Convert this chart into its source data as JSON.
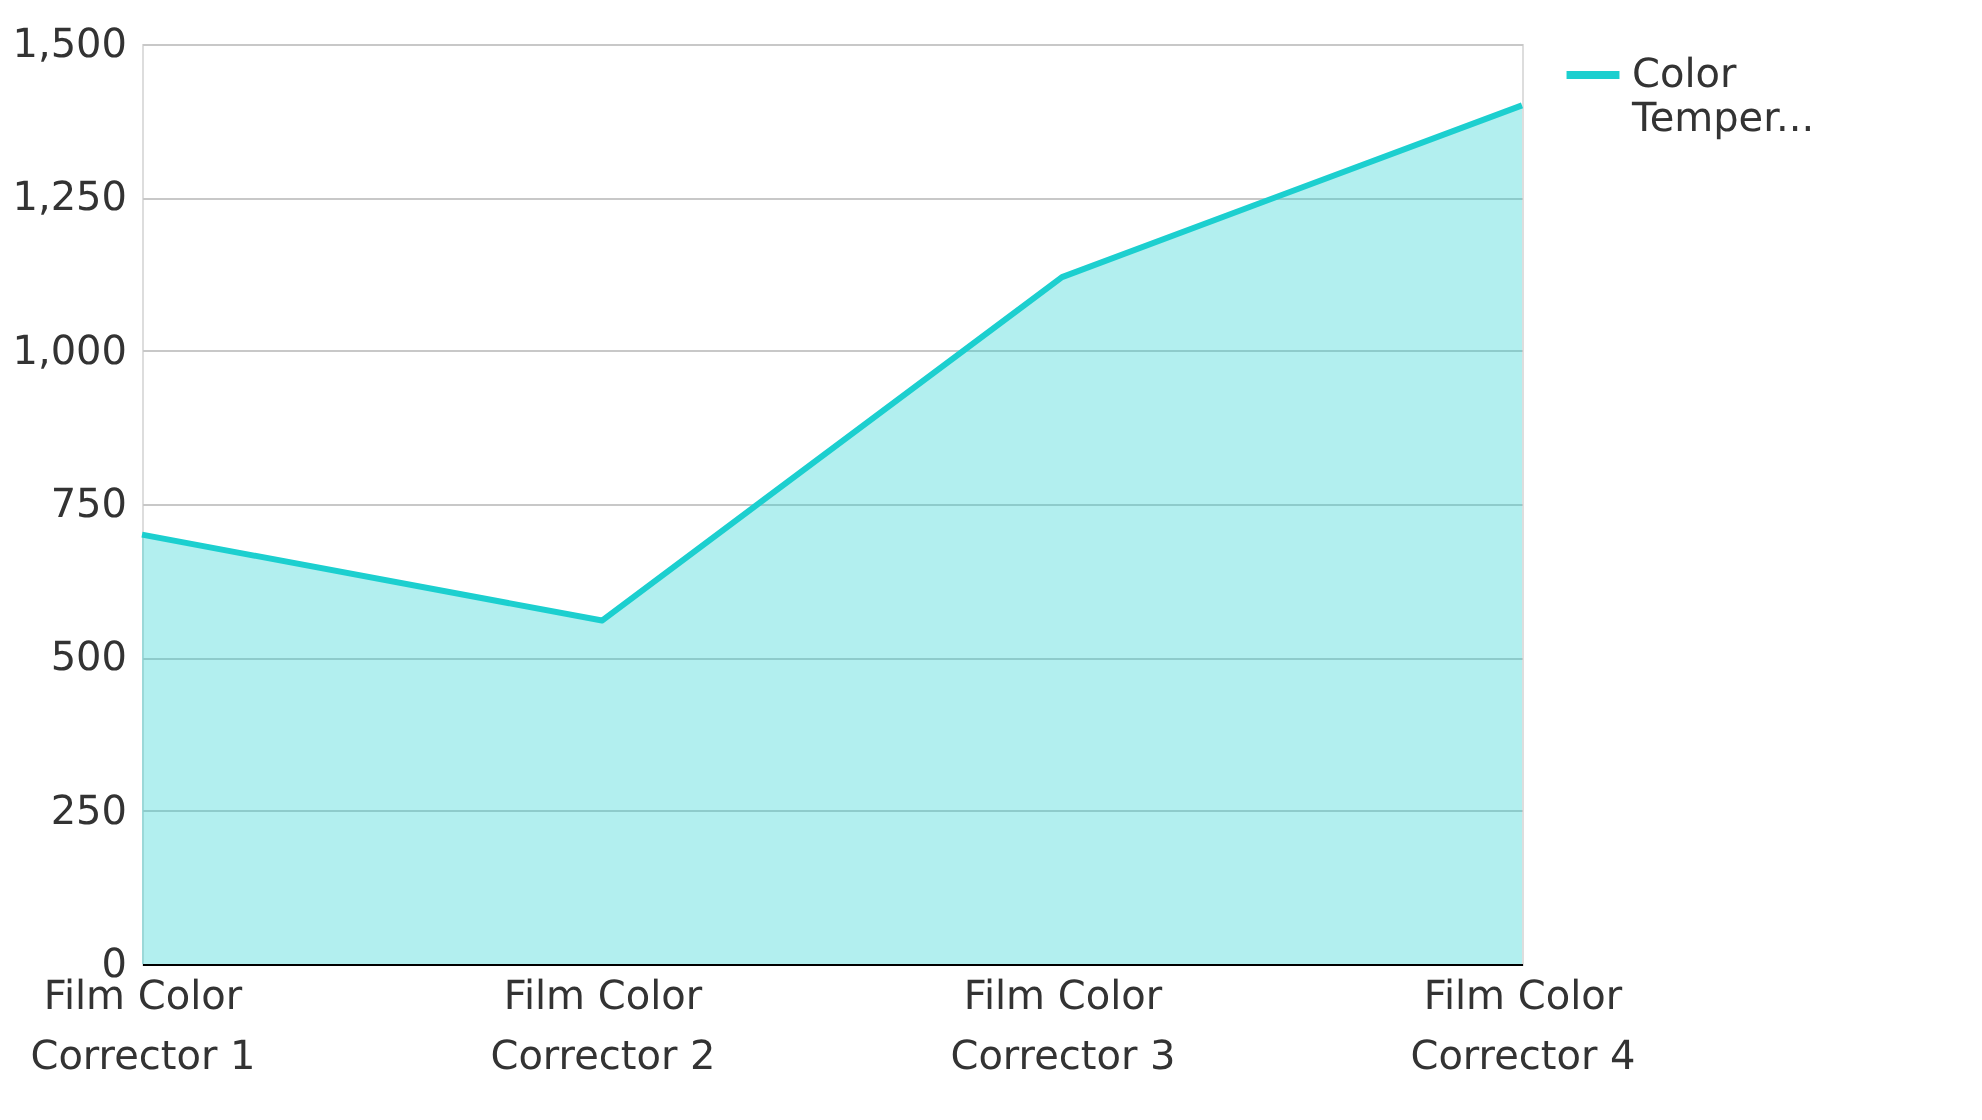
{
  "chart_data": {
    "type": "area",
    "categories": [
      "Film Color Corrector 1",
      "Film Color Corrector 2",
      "Film Color Corrector 3",
      "Film Color Corrector 4"
    ],
    "series": [
      {
        "name": "Color Temper...",
        "color": "#1ccfcf",
        "values": [
          700,
          560,
          1120,
          1400
        ]
      }
    ],
    "ylim": [
      0,
      1500
    ],
    "yticks": [
      0,
      250,
      500,
      750,
      {
        "value": 1000,
        "label": "1,000"
      },
      {
        "value": 1250,
        "label": "1,250"
      },
      {
        "value": 1500,
        "label": "1,500"
      }
    ],
    "grid": "y",
    "legend": "right"
  }
}
